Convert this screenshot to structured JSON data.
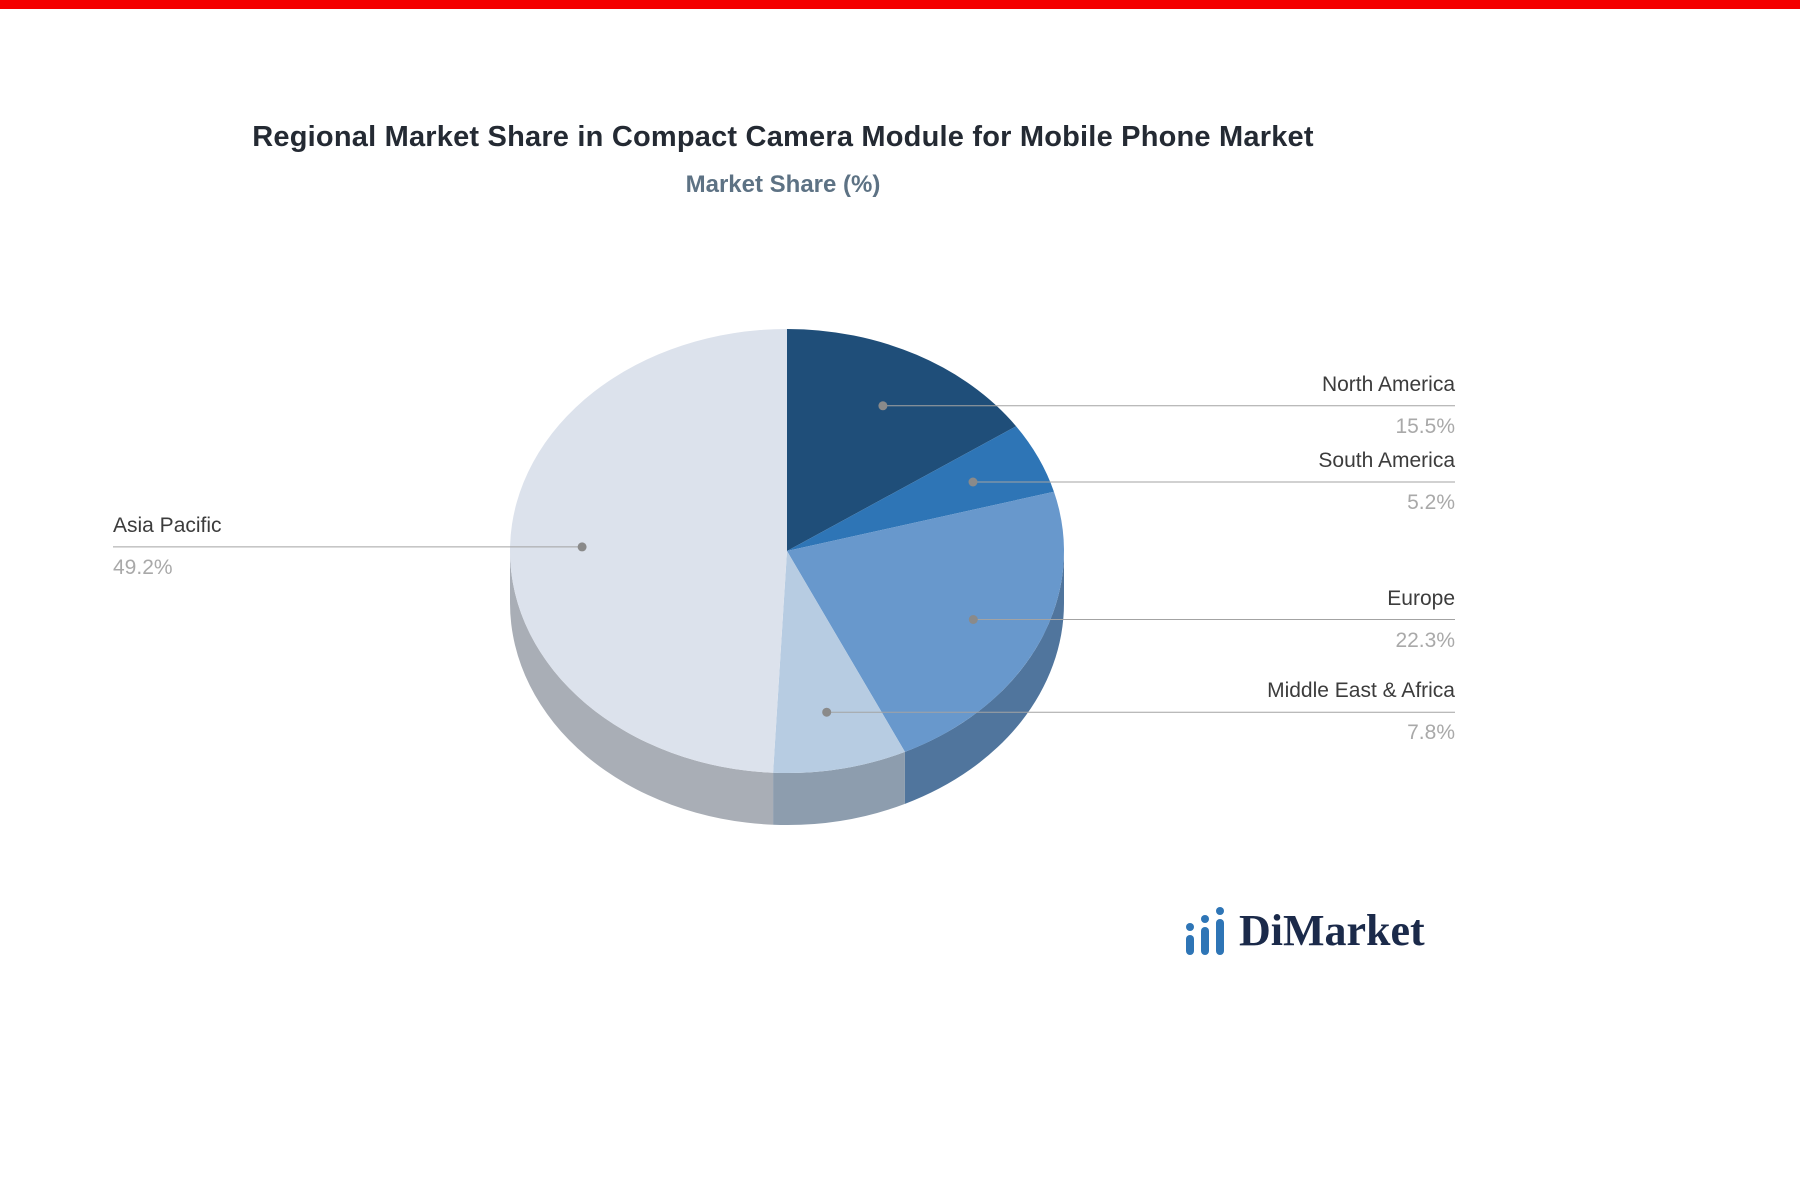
{
  "page": {
    "accent_bar_color": "#F40000",
    "background_color": "#FFFFFF"
  },
  "chart_data": {
    "type": "pie",
    "title": "Regional Market Share in Compact Camera Module for Mobile Phone Market",
    "subtitle": "Market Share (%)",
    "unit": "%",
    "effect_3d": true,
    "start_angle_deg": 0,
    "direction": "clockwise",
    "labels_position": "callout",
    "legend_position": "none",
    "labels": [
      "North America",
      "South America",
      "Europe",
      "Middle East & Africa",
      "Asia Pacific"
    ],
    "values": [
      15.5,
      5.2,
      22.3,
      7.8,
      49.2
    ],
    "value_labels": [
      "15.5%",
      "5.2%",
      "22.3%",
      "7.8%",
      "49.2%"
    ],
    "colors": [
      "#1F4E79",
      "#2E75B6",
      "#6898CC",
      "#B7CCE2",
      "#DCE2EC"
    ]
  },
  "logo": {
    "text": "DiMarket",
    "icon": "bar-chart-icon",
    "icon_color": "#2E75B6",
    "text_color": "#1B2A4A"
  }
}
